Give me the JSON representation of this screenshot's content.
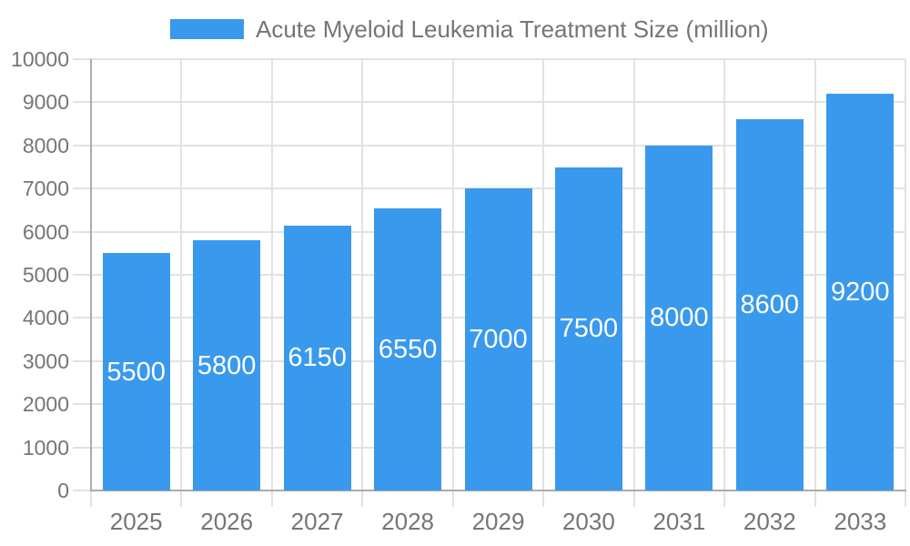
{
  "legend": {
    "label": "Acute Myeloid Leukemia Treatment Size (million)"
  },
  "chart_data": {
    "type": "bar",
    "title": "Acute Myeloid Leukemia Treatment Size (million)",
    "categories": [
      "2025",
      "2026",
      "2027",
      "2028",
      "2029",
      "2030",
      "2031",
      "2032",
      "2033"
    ],
    "series": [
      {
        "name": "Acute Myeloid Leukemia Treatment Size (million)",
        "values": [
          5500,
          5800,
          6150,
          6550,
          7000,
          7500,
          8000,
          8600,
          9200
        ]
      }
    ],
    "bar_value_labels": [
      "5500",
      "5800",
      "6150",
      "6550",
      "7000",
      "7500",
      "8000",
      "8600",
      "9200"
    ],
    "xlabel": "",
    "ylabel": "",
    "ylim": [
      0,
      10000
    ],
    "y_tick_step": 1000,
    "y_tick_labels": [
      "0",
      "1000",
      "2000",
      "3000",
      "4000",
      "5000",
      "6000",
      "7000",
      "8000",
      "9000",
      "10000"
    ],
    "grid": true,
    "legend_position": "top",
    "colors": {
      "bar": "#3999ED",
      "bar_label_text": "#FFFFFF",
      "axis_text": "#757575",
      "gridline": "#E2E2E2",
      "axis_line": "#ABABAB",
      "background": "#FFFFFF"
    }
  }
}
